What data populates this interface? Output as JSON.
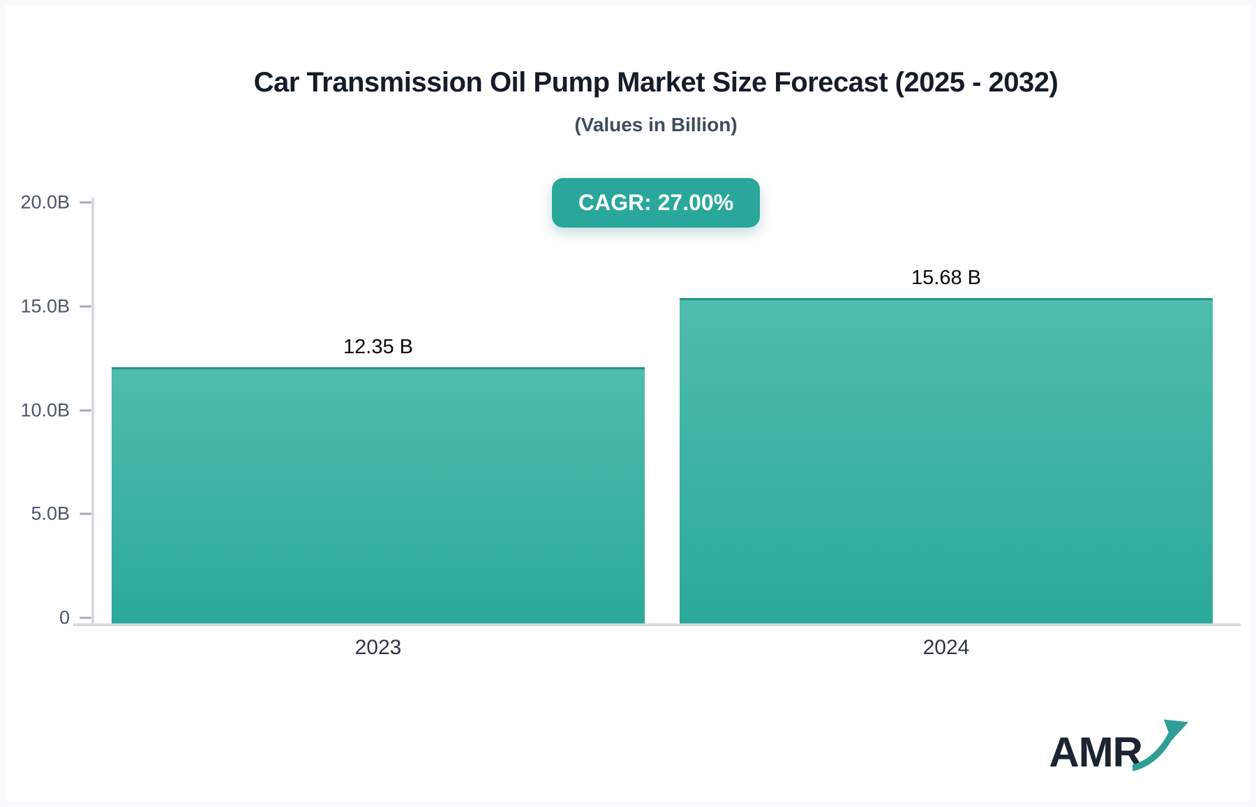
{
  "page": {
    "title": "Car Transmission Oil Pump Market Size Forecast (2025 - 2032)",
    "subtitle": "(Values in Billion)",
    "cagr_label": "CAGR: 27.00%"
  },
  "chart_data": {
    "type": "bar",
    "title": "Car Transmission Oil Pump Market Size Forecast (2025 - 2032)",
    "subtitle": "(Values in Billion)",
    "annotation": "CAGR: 27.00%",
    "categories": [
      "2023",
      "2024"
    ],
    "values": [
      12.35,
      15.68
    ],
    "value_labels": [
      "12.35 B",
      "15.68 B"
    ],
    "xlabel": "",
    "ylabel": "",
    "ylim": [
      0,
      20
    ],
    "y_ticks": [
      {
        "value": 20,
        "label": "20.0B"
      },
      {
        "value": 15,
        "label": "15.0B"
      },
      {
        "value": 10,
        "label": "10.0B"
      },
      {
        "value": 5,
        "label": "5.0B"
      },
      {
        "value": 0,
        "label": "0"
      }
    ],
    "grid": false,
    "legend": false,
    "bar_color_top": "#4fbcae",
    "bar_color_bottom": "#2ba99b",
    "bar_border_color": "#1f968b"
  },
  "colors": {
    "accent_teal": "#29a79b",
    "axis_line": "#d7dbdf",
    "tick_dash": "#a6adb5",
    "axis_label": "#4a5568",
    "title_text": "#141c28",
    "logo_text": "#1b2430",
    "logo_arrow": "#2f9f96"
  },
  "logo": {
    "text": "AMR"
  }
}
